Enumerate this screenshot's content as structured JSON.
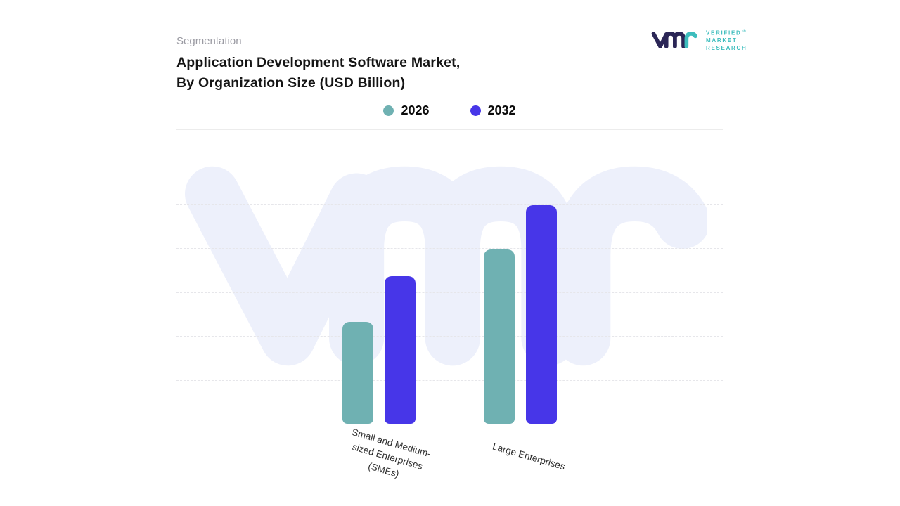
{
  "header": {
    "eyebrow": "Segmentation",
    "title_line1": "Application Development Software Market,",
    "title_line2": "By Organization Size (USD Billion)"
  },
  "logo": {
    "text_lines": [
      "VERIFIED",
      "MARKET",
      "RESEARCH"
    ],
    "registered_mark": "®",
    "text_color": "#3dbdbd",
    "mark_colors": {
      "primary": "#2b2656",
      "accent": "#3dbdbd"
    },
    "watermark_color": "#edf0fb"
  },
  "chart_data": {
    "type": "bar",
    "title": "Application Development Software Market, By Organization Size (USD Billion)",
    "categories": [
      "Small and Medium-sized Enterprises (SMEs)",
      "Large Enterprises"
    ],
    "category_label_lines": [
      [
        "Small and Medium-",
        "sized Enterprises",
        "(SMEs)"
      ],
      [
        "Large Enterprises"
      ]
    ],
    "series": [
      {
        "name": "2026",
        "color": "#6fb1b2",
        "values": [
          4.6,
          7.9
        ]
      },
      {
        "name": "2032",
        "color": "#4736e8",
        "values": [
          6.7,
          9.9
        ]
      }
    ],
    "xlabel": "",
    "ylabel": "",
    "ylim": [
      0,
      12
    ],
    "grid": "horizontal-dashed",
    "legend_position": "top-center"
  }
}
